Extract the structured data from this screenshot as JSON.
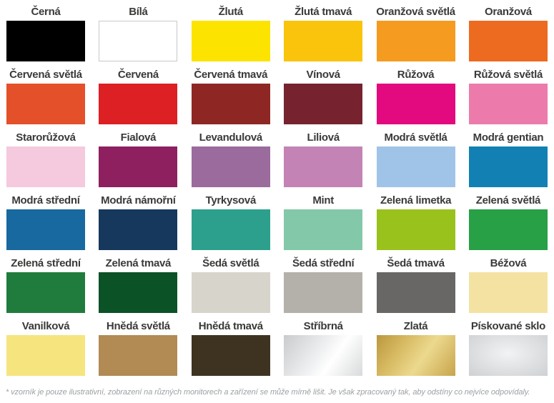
{
  "page": {
    "background": "#ffffff",
    "footnote": "* vzorník je pouze ilustrativní, zobrazení na různých monitorech a zařízení se může mírně lišit. Je však zpracovaný tak, aby odstíny co nejvíce odpovídaly."
  },
  "palette": {
    "label_color": "#3a3a39",
    "footnote_color": "#9da0a3",
    "white_swatch_border": "#c9c9c9"
  },
  "swatches": [
    {
      "name": "cerna",
      "label": "Černá",
      "color": "#000000"
    },
    {
      "name": "bila",
      "label": "Bílá",
      "color": "#ffffff",
      "border": "#c9c9c9"
    },
    {
      "name": "zluta",
      "label": "Žlutá",
      "color": "#fce300"
    },
    {
      "name": "zluta-tmava",
      "label": "Žlutá tmavá",
      "color": "#f9c40b"
    },
    {
      "name": "oranzova-svetla",
      "label": "Oranžová světlá",
      "color": "#f49b20"
    },
    {
      "name": "oranzova",
      "label": "Oranžová",
      "color": "#ed6a21"
    },
    {
      "name": "cervena-svetla",
      "label": "Červená světlá",
      "color": "#e35029"
    },
    {
      "name": "cervena",
      "label": "Červená",
      "color": "#dc2023"
    },
    {
      "name": "cervena-tmava",
      "label": "Červená tmavá",
      "color": "#8e2723"
    },
    {
      "name": "vinova",
      "label": "Vínová",
      "color": "#76232f"
    },
    {
      "name": "ruzova",
      "label": "Růžová",
      "color": "#e3097e"
    },
    {
      "name": "ruzova-svetla",
      "label": "Růžová světlá",
      "color": "#ec7bac"
    },
    {
      "name": "staroruzova",
      "label": "Starorůžová",
      "color": "#f5c9de"
    },
    {
      "name": "fialova",
      "label": "Fialová",
      "color": "#8e2060"
    },
    {
      "name": "levandulova",
      "label": "Levandulová",
      "color": "#9b6b9e"
    },
    {
      "name": "liliova",
      "label": "Liliová",
      "color": "#c383b4"
    },
    {
      "name": "modra-svetla",
      "label": "Modrá světlá",
      "color": "#a0c4e8"
    },
    {
      "name": "modra-gentian",
      "label": "Modrá gentian",
      "color": "#1380b4"
    },
    {
      "name": "modra-stredni",
      "label": "Modrá střední",
      "color": "#18699f"
    },
    {
      "name": "modra-namorni",
      "label": "Modrá námořní",
      "color": "#15385c"
    },
    {
      "name": "tyrkysova",
      "label": "Tyrkysová",
      "color": "#2d9f8d"
    },
    {
      "name": "mint",
      "label": "Mint",
      "color": "#83c8a9"
    },
    {
      "name": "zelena-limetka",
      "label": "Zelená limetka",
      "color": "#99c21d"
    },
    {
      "name": "zelena-svetla",
      "label": "Zelená světlá",
      "color": "#27a046"
    },
    {
      "name": "zelena-stredni",
      "label": "Zelená střední",
      "color": "#207c3c"
    },
    {
      "name": "zelena-tmava",
      "label": "Zelená tmavá",
      "color": "#0c5227"
    },
    {
      "name": "seda-svetla",
      "label": "Šedá světlá",
      "color": "#d7d4cc"
    },
    {
      "name": "seda-stredni",
      "label": "Šedá střední",
      "color": "#b4b0aa"
    },
    {
      "name": "seda-tmava",
      "label": "Šedá tmavá",
      "color": "#696766"
    },
    {
      "name": "bezova",
      "label": "Béžová",
      "color": "#f4e2a2"
    },
    {
      "name": "vanilkova",
      "label": "Vanilková",
      "color": "#f6e57e"
    },
    {
      "name": "hneda-svetla",
      "label": "Hnědá světlá",
      "color": "#b18b53"
    },
    {
      "name": "hneda-tmava",
      "label": "Hnědá tmavá",
      "color": "#3e3321"
    },
    {
      "name": "stribrna",
      "label": "Stříbrná",
      "gradient": "linear-gradient(125deg, #c9cbcd 0%, #eff0f1 45%, #ffffff 62%, #d8dadb 100%)"
    },
    {
      "name": "zlata",
      "label": "Zlatá",
      "gradient": "linear-gradient(125deg, #bb973e 0%, #d7ba62 30%, #ecd98e 58%, #c7a44b 100%)"
    },
    {
      "name": "piskovane-sklo",
      "label": "Pískované sklo",
      "gradient": "radial-gradient(ellipse at 50% 45%, #f2f3f4 0%, #dcdee0 60%, #ced1d3 100%)"
    }
  ]
}
